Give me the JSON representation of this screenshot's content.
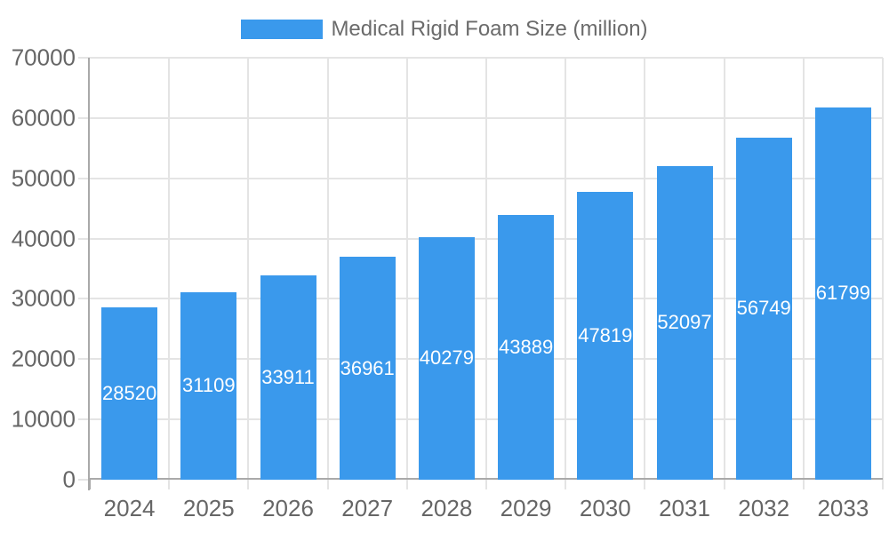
{
  "colors": {
    "bar": "#3A99EC",
    "grid": "#E4E4E4",
    "axis": "#A9A9A9",
    "tick_text": "#666666",
    "legend_text": "#6B6B6B",
    "data_label": "#FFFFFF",
    "background": "#FFFFFF"
  },
  "chart_data": {
    "type": "bar",
    "title": "Medical Rigid Foam Size (million)",
    "categories": [
      "2024",
      "2025",
      "2026",
      "2027",
      "2028",
      "2029",
      "2030",
      "2031",
      "2032",
      "2033"
    ],
    "series": [
      {
        "name": "Medical Rigid Foam Size (million)",
        "values": [
          28520,
          31109,
          33911,
          36961,
          40279,
          43889,
          47819,
          52097,
          56749,
          61799
        ]
      }
    ],
    "xlabel": "",
    "ylabel": "",
    "ylim": [
      0,
      70000
    ],
    "ytick_step": 10000,
    "yticks": [
      0,
      10000,
      20000,
      30000,
      40000,
      50000,
      60000,
      70000
    ],
    "grid": true,
    "legend_position": "top-center",
    "value_labels": "inside-center"
  }
}
